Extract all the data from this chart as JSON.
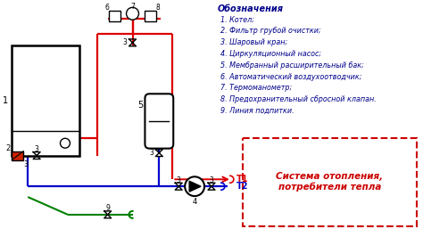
{
  "bg_color": "#ffffff",
  "legend_title": "Обозначения",
  "legend_items": [
    "1. Котел;",
    "2. Фильтр грубой очистки;",
    "3. Шаровый кран;",
    "4. Циркуляционный насос;",
    "5. Мембранный расширительный бак;",
    "6. Автоматический воздухоотводчик;",
    "7. Термоманометр;",
    "8. Предохранительный сбросной клапан.",
    "9. Линия подпитки."
  ],
  "system_box_text": "Система отопления,\nпотребители тепла",
  "t1_label": "T1",
  "t2_label": "T2",
  "pipe_red": "#dd0000",
  "pipe_blue": "#0000cc",
  "pipe_green": "#008000",
  "text_dark": "#00008B",
  "text_red": "#cc0000"
}
